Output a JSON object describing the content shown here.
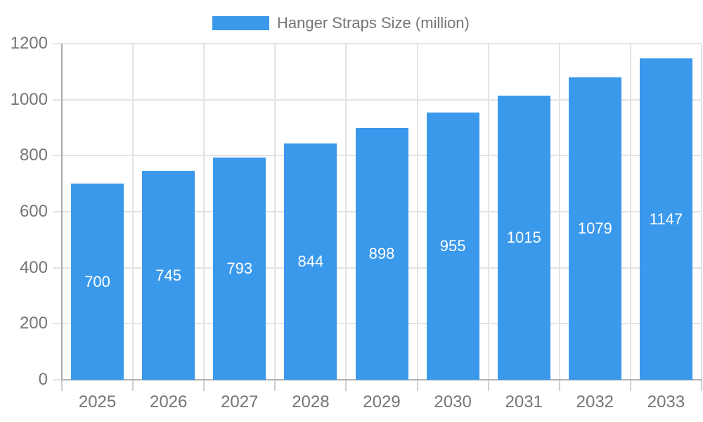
{
  "legend": {
    "label": "Hanger Straps Size (million)"
  },
  "chart_data": {
    "type": "bar",
    "title": "",
    "xlabel": "",
    "ylabel": "",
    "categories": [
      "2025",
      "2026",
      "2027",
      "2028",
      "2029",
      "2030",
      "2031",
      "2032",
      "2033"
    ],
    "series": [
      {
        "name": "Hanger Straps Size (million)",
        "values": [
          700,
          745,
          793,
          844,
          898,
          955,
          1015,
          1079,
          1147
        ]
      }
    ],
    "bar_labels": [
      "700",
      "745",
      "793",
      "844",
      "898",
      "955",
      "1015",
      "1079",
      "1147"
    ],
    "ylim": [
      0,
      1200
    ],
    "yticks": [
      0,
      200,
      400,
      600,
      800,
      1000,
      1200
    ],
    "grid": true,
    "legend_position": "top",
    "colors": {
      "bar": "#3b99eb",
      "bar_label": "#ffffff",
      "axis_text": "#757575",
      "gridline": "#e3e3e3",
      "axis_line": "#ababab"
    }
  }
}
